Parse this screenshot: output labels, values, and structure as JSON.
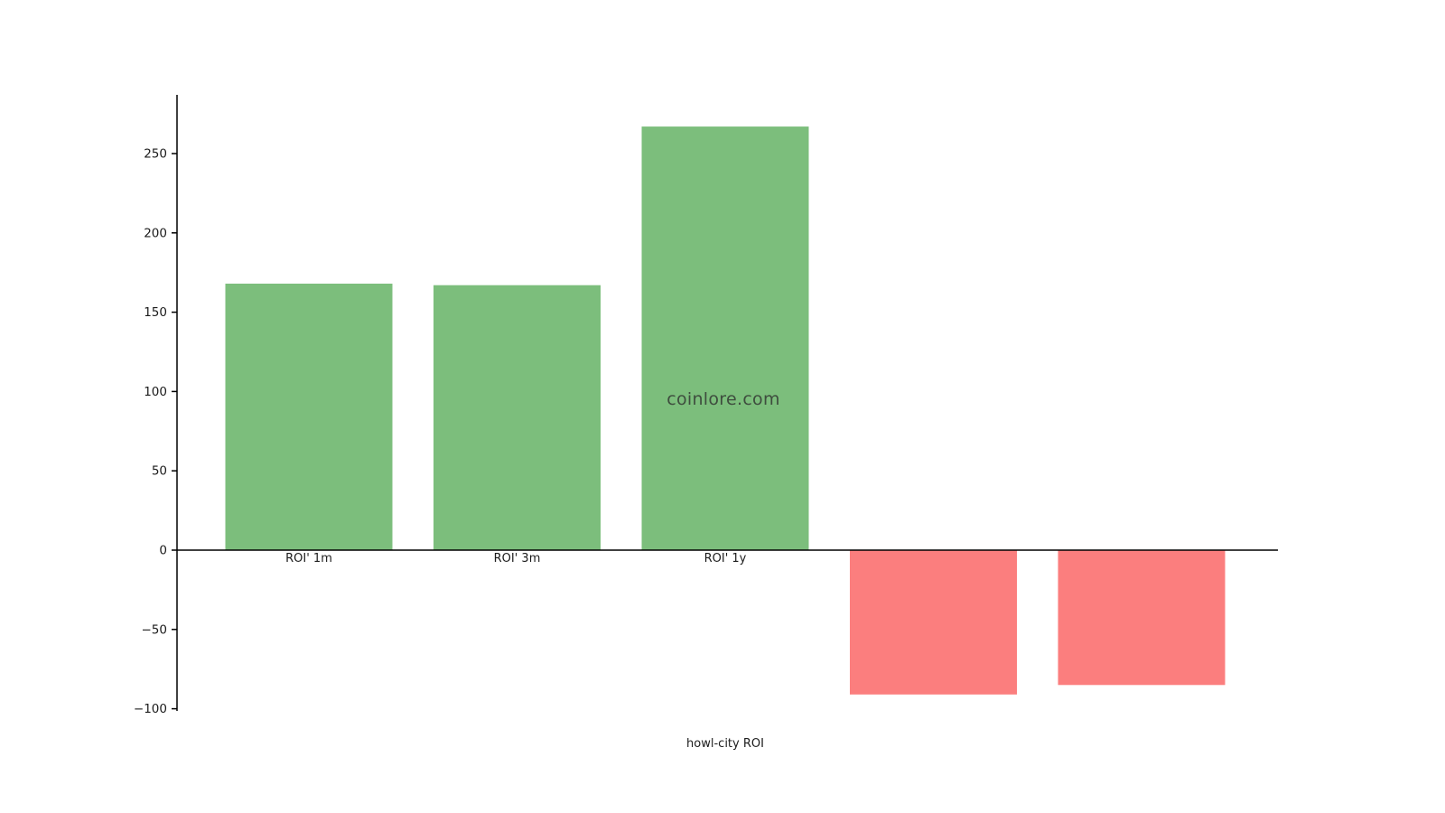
{
  "page": {
    "background": "#ffffff"
  },
  "chart_data": {
    "type": "bar",
    "title": "",
    "xlabel": "howl-city ROI",
    "ylabel": "",
    "watermark": "coinlore.com",
    "categories": [
      "ROI' 1m",
      "ROI' 3m",
      "ROI' 1y",
      "",
      ""
    ],
    "values": [
      168,
      167,
      267,
      -91,
      -85
    ],
    "series": [
      {
        "name": "howl-city ROI %",
        "values": [
          168,
          167,
          267,
          -91,
          -85
        ]
      }
    ],
    "bar_colors": [
      "#7cbe7c",
      "#7cbe7c",
      "#7cbe7c",
      "#fb7e7e",
      "#fb7e7e"
    ],
    "positive_color": "#7cbe7c",
    "negative_color": "#fb7e7e",
    "yticks": [
      {
        "value": 250,
        "label": "250"
      },
      {
        "value": 200,
        "label": "200"
      },
      {
        "value": 150,
        "label": "150"
      },
      {
        "value": 100,
        "label": "100"
      },
      {
        "value": 50,
        "label": "50"
      },
      {
        "value": 0,
        "label": "0"
      },
      {
        "value": -50,
        "label": "−50"
      },
      {
        "value": -100,
        "label": "−100"
      }
    ],
    "ylim": [
      -101.5,
      287
    ],
    "grid": false,
    "legend": null,
    "axis_color": "#000000",
    "text_color": "#1c1c1c",
    "watermark_color": "rgba(45,45,45,0.78)"
  }
}
